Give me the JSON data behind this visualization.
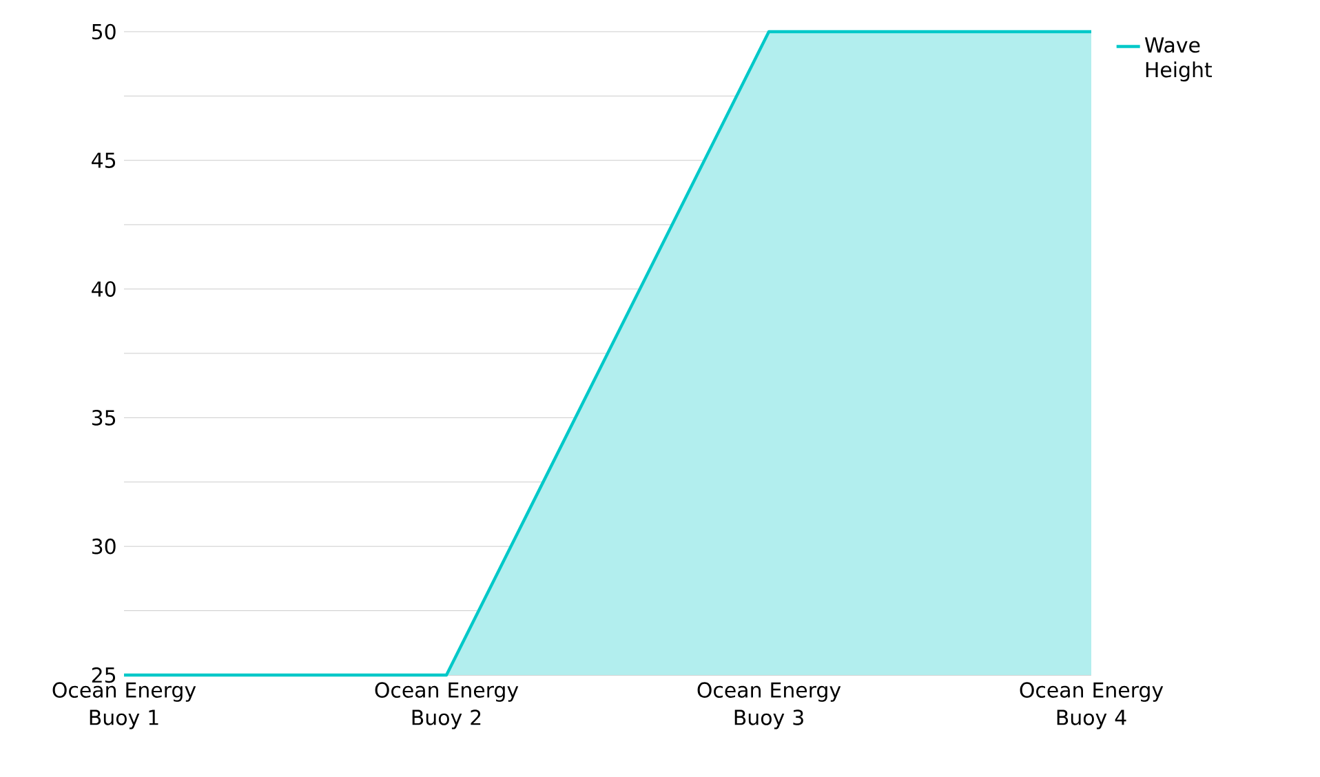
{
  "chart_data": {
    "type": "area",
    "categories": [
      "Ocean Energy Buoy 1",
      "Ocean Energy Buoy 2",
      "Ocean Energy Buoy 3",
      "Ocean Energy Buoy 4"
    ],
    "series": [
      {
        "name": "Wave Height",
        "color": "#00c8c8",
        "values": [
          25,
          25,
          50,
          50
        ]
      }
    ],
    "ylim": [
      25,
      50
    ],
    "yticks": [
      25,
      {
        "value": 27.5,
        "label": null
      },
      30,
      {
        "value": 32.5,
        "label": null
      },
      35,
      {
        "value": 37.5,
        "label": null
      },
      40,
      {
        "value": 42.5,
        "label": null
      },
      45,
      {
        "value": 47.5,
        "label": null
      },
      50
    ],
    "grid": "y",
    "legend": "top right",
    "marker": "none",
    "line_style": "solid"
  }
}
